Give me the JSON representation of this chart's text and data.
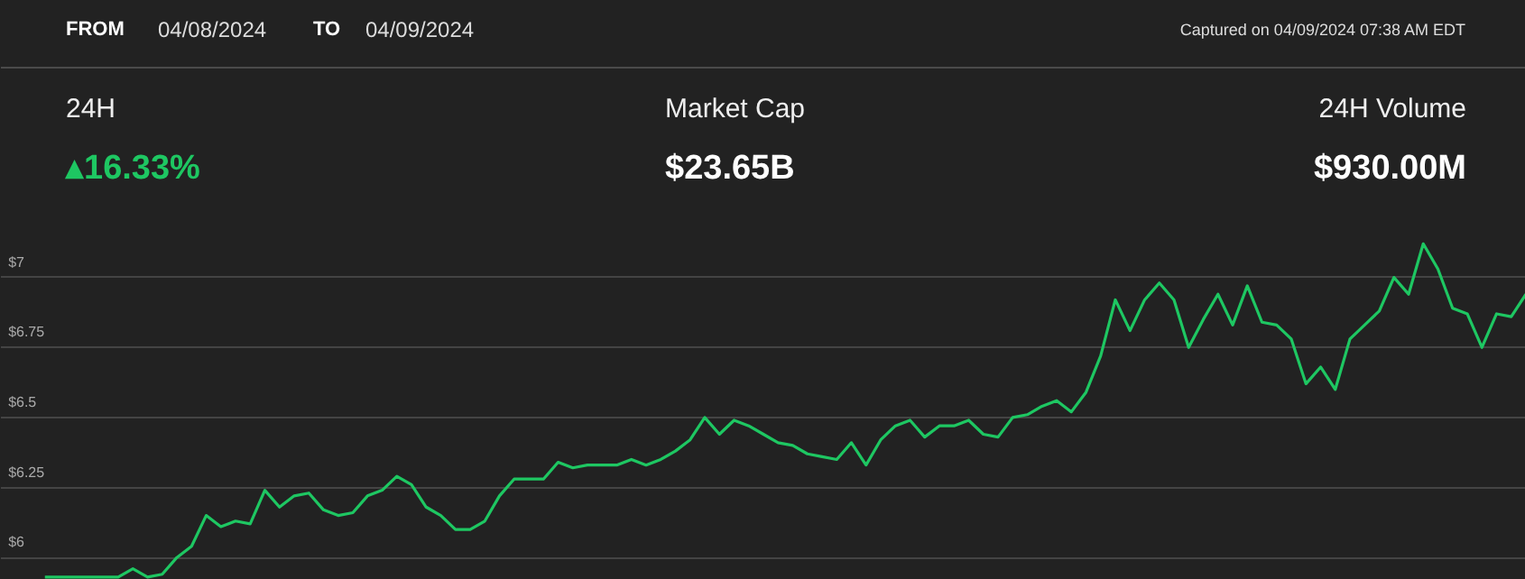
{
  "chart_data": {
    "type": "line",
    "annotations": [
      "FROM",
      "04/08/2024",
      "TO",
      "04/09/2024",
      "Captured on 04/09/2024 07:38 AM EDT",
      "24H",
      "▴16.33%",
      "Market Cap",
      "$23.65B",
      "24H Volume",
      "$930.00M"
    ],
    "categories": [
      null,
      null,
      null,
      null,
      null,
      null,
      null,
      null,
      null,
      null,
      null,
      null,
      null,
      null,
      null,
      null,
      null,
      null,
      null,
      null,
      null,
      null,
      null,
      null,
      null,
      null,
      null,
      null,
      null,
      null,
      null,
      null,
      null,
      null,
      null,
      null,
      null,
      null,
      null,
      null,
      null,
      null,
      null,
      null,
      null,
      null,
      null,
      null,
      null,
      null,
      null,
      null,
      null,
      null,
      null,
      null,
      null,
      null,
      null,
      null,
      null,
      null,
      null,
      null,
      null,
      null,
      null,
      null,
      null,
      null,
      null,
      null,
      null,
      null,
      null,
      null,
      null,
      null,
      null,
      null,
      null,
      null,
      null,
      null,
      null,
      null,
      null,
      null,
      null,
      null,
      null,
      null,
      null,
      null,
      null,
      null,
      null,
      null,
      null,
      null,
      null,
      null
    ],
    "series": [
      {
        "color": "#1ec762",
        "values": [
          5.93,
          5.93,
          5.93,
          5.93,
          5.93,
          5.93,
          5.96,
          5.93,
          5.94,
          6.0,
          6.04,
          6.15,
          6.11,
          6.13,
          6.12,
          6.24,
          6.18,
          6.22,
          6.23,
          6.17,
          6.15,
          6.16,
          6.22,
          6.24,
          6.29,
          6.26,
          6.18,
          6.15,
          6.1,
          6.1,
          6.13,
          6.22,
          6.28,
          6.28,
          6.28,
          6.34,
          6.32,
          6.33,
          6.33,
          6.33,
          6.35,
          6.33,
          6.35,
          6.38,
          6.42,
          6.5,
          6.44,
          6.49,
          6.47,
          6.44,
          6.41,
          6.4,
          6.37,
          6.36,
          6.35,
          6.41,
          6.33,
          6.42,
          6.47,
          6.49,
          6.43,
          6.47,
          6.47,
          6.49,
          6.44,
          6.43,
          6.5,
          6.51,
          6.54,
          6.56,
          6.52,
          6.59,
          6.72,
          6.92,
          6.81,
          6.92,
          6.98,
          6.92,
          6.75,
          6.85,
          6.94,
          6.83,
          6.97,
          6.84,
          6.83,
          6.78,
          6.62,
          6.68,
          6.6,
          6.78,
          6.83,
          6.88,
          7.0,
          6.94,
          7.12,
          7.03,
          6.89,
          6.87,
          6.75,
          6.87,
          6.86,
          6.94
        ]
      }
    ],
    "ylim": [
      5.92,
      7.15
    ],
    "yticks": [
      {
        "value": 6,
        "label": "$6"
      },
      {
        "value": 6.25,
        "label": "$6.25"
      },
      {
        "value": 6.5,
        "label": "$6.5"
      },
      {
        "value": 6.75,
        "label": "$6.75"
      },
      {
        "value": 7,
        "label": "$7"
      }
    ],
    "grid": "y",
    "marker": "none",
    "line_style": "solid"
  }
}
